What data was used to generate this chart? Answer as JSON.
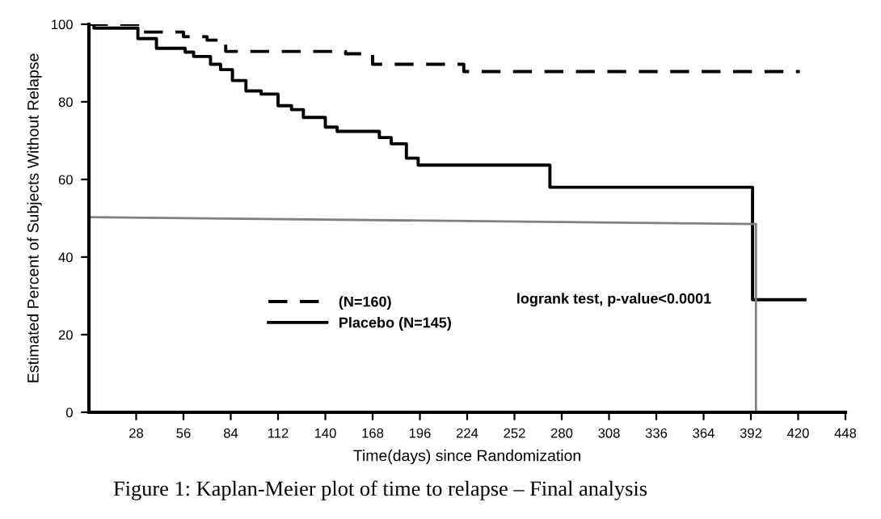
{
  "chart_data": {
    "type": "step",
    "xlabel": "Time(days) since Randomization",
    "ylabel": "Estimated Percent of Subjects Without Relapse",
    "xlim": [
      0,
      448
    ],
    "xticks": [
      28,
      56,
      84,
      112,
      140,
      168,
      196,
      224,
      252,
      280,
      308,
      336,
      364,
      392,
      420,
      448
    ],
    "ylim": [
      0,
      100
    ],
    "yticks": [
      0,
      20,
      40,
      60,
      80,
      100
    ],
    "grid": false,
    "legend": "bottom",
    "series": [
      {
        "name": "(N=160)",
        "color": "#000000",
        "line_style": "dashed",
        "x": [
          0,
          30,
          56,
          70,
          81,
          152,
          168,
          222,
          421
        ],
        "values": [
          100,
          98,
          96.8,
          95.9,
          93,
          92.4,
          89.7,
          87.8,
          87.8
        ]
      },
      {
        "name": "Placebo (N=145)",
        "color": "#000000",
        "line_style": "solid",
        "x": [
          0,
          3,
          29,
          40,
          57,
          62,
          72,
          78,
          85,
          93,
          102,
          112,
          120,
          127,
          140,
          147,
          172,
          179,
          188,
          195,
          273,
          393,
          424
        ],
        "values": [
          100,
          99,
          96.3,
          93.8,
          92.8,
          91.7,
          89.7,
          88.3,
          85.5,
          82.8,
          82,
          79,
          78,
          76,
          73.5,
          72.4,
          70.8,
          69.2,
          65.5,
          63.7,
          58,
          29,
          29
        ]
      },
      {
        "type": "line",
        "color": "#808080",
        "line_style": "solid",
        "x": [
          0,
          395,
          395
        ],
        "values": [
          50.3,
          48.5,
          0
        ]
      }
    ],
    "annotations": [
      "logrank test, p-value<0.0001",
      "Figure 1: Kaplan-Meier plot of time to relapse – Final analysis"
    ]
  }
}
